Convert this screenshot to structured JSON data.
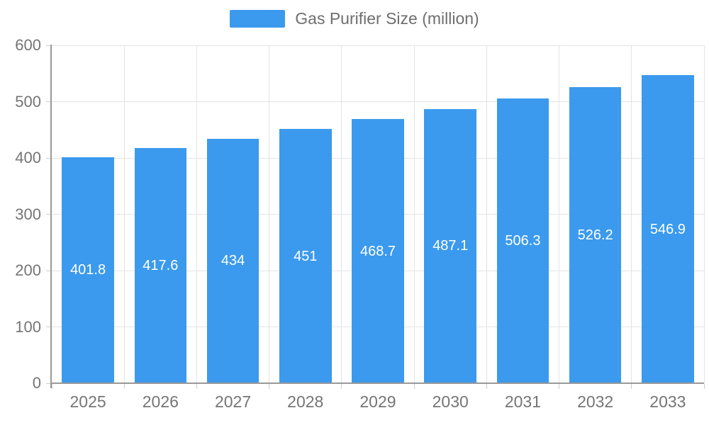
{
  "legend": {
    "label": "Gas Purifier Size (million)"
  },
  "chart_data": {
    "type": "bar",
    "title": "",
    "categories": [
      "2025",
      "2026",
      "2027",
      "2028",
      "2029",
      "2030",
      "2031",
      "2032",
      "2033"
    ],
    "series": [
      {
        "name": "Gas Purifier Size (million)",
        "values": [
          401.8,
          417.6,
          434,
          451,
          468.7,
          487.1,
          506.3,
          526.2,
          546.9
        ]
      }
    ],
    "xlabel": "",
    "ylabel": "",
    "ylim": [
      0,
      600
    ],
    "ytick_interval": 100,
    "yticks": [
      0,
      100,
      200,
      300,
      400,
      500,
      600
    ],
    "grid": true,
    "legend_position": "top-center",
    "value_labels": "inside-center",
    "colors": {
      "bar": "#3b9aed",
      "value_label": "#ffffff",
      "axis_line": "#999999",
      "gridline": "#e3e3e3",
      "tick": "#cccccc",
      "tick_label": "#757575",
      "legend_text": "#6e6e6e"
    }
  }
}
